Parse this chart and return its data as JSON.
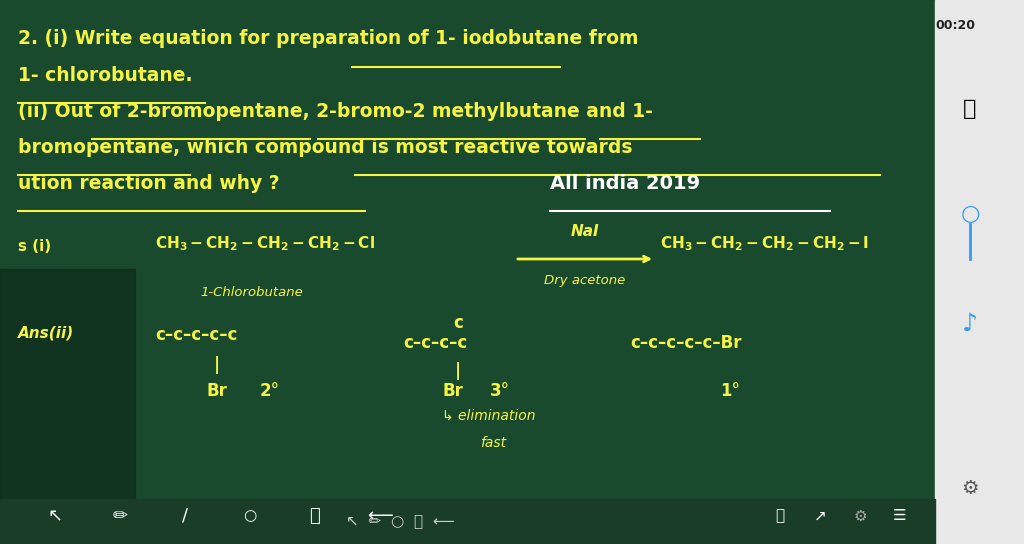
{
  "bg_color": "#1a4a2e",
  "text_color": "#f5f542",
  "white_color": "#ffffff",
  "title_line1": "2. (i) Write equation for preparation of 1- iodobutane from",
  "title_line2": "1- chlorobutane.",
  "title_line3": "(ii) Out of 2-bromopentane, 2-bromo-2 methylbutane and 1-",
  "title_line4": "bromopentane, which compound is most reactive towards",
  "title_line5": "ution reaction and why ?",
  "all_india": "All india 2019",
  "timer": "00:20",
  "ans_i_label": "s (i)",
  "reactant": "CH₃–CH₂–CH₂–CH₂–Cl",
  "reagent_top": "NaI",
  "reagent_bottom": "Dry acetone",
  "product": "CH₃–CH₂–CH₂–CH₂–I",
  "reactant_label": "1-Chlorobutane",
  "ans_ii_label": "Ans(ii)",
  "struct1": "c–c–c–c–c",
  "struct1_sub": "|",
  "struct1_br": "Br",
  "struct1_deg": "2°",
  "struct2": "c–c–c–c",
  "struct2_top": "c",
  "struct2_br": "Br",
  "struct2_deg": "3°",
  "struct3": "c–c–c–c–c–Br",
  "struct3_deg": "1°",
  "elim": "└ elimination",
  "fast": "fast",
  "sidebar_bg": "#e8e8e8"
}
